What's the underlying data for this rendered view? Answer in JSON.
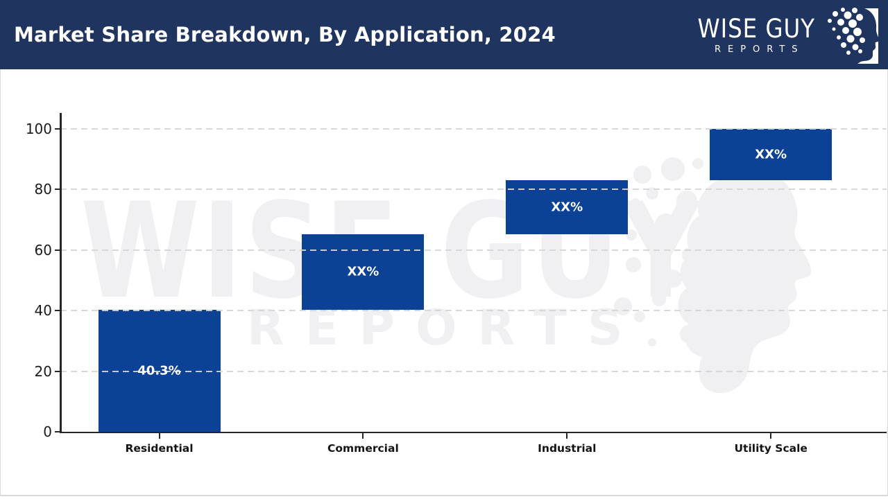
{
  "header": {
    "title": "Market Share Breakdown, By Application, 2024",
    "logo": {
      "line1": "WISE GUY",
      "line2": "REPORTS"
    }
  },
  "watermark": {
    "line1": "WISE GUY",
    "line2": "REPORTS"
  },
  "chart_data": {
    "type": "bar",
    "subtype": "waterfall",
    "title": "Market Share Breakdown, By Application, 2024",
    "categories": [
      "Residential",
      "Commercial",
      "Industrial",
      "Utility Scale"
    ],
    "segments": [
      {
        "category": "Residential",
        "start": 0,
        "end": 40.3,
        "label": "40.3%"
      },
      {
        "category": "Commercial",
        "start": 40.3,
        "end": 65.3,
        "label": "XX%"
      },
      {
        "category": "Industrial",
        "start": 65.3,
        "end": 83.1,
        "label": "XX%"
      },
      {
        "category": "Utility Scale",
        "start": 83.1,
        "end": 100,
        "label": "XX%"
      }
    ],
    "xlabel": "",
    "ylabel": "",
    "ylim": [
      0,
      105
    ],
    "yticks": [
      0,
      20,
      40,
      60,
      80,
      100
    ],
    "grid": "horizontal-dashed",
    "legend": "none",
    "bar_color": "#0B4296",
    "bar_label_color": "#FFFFFF"
  },
  "colors": {
    "header_bg": "#1F345E",
    "bar_blue": "#0B4296",
    "watermark_gray": "#F0F0F3",
    "axis_dark": "#262626",
    "grid_gray": "#D5D5D5",
    "panel_border": "#D9D9D9"
  }
}
